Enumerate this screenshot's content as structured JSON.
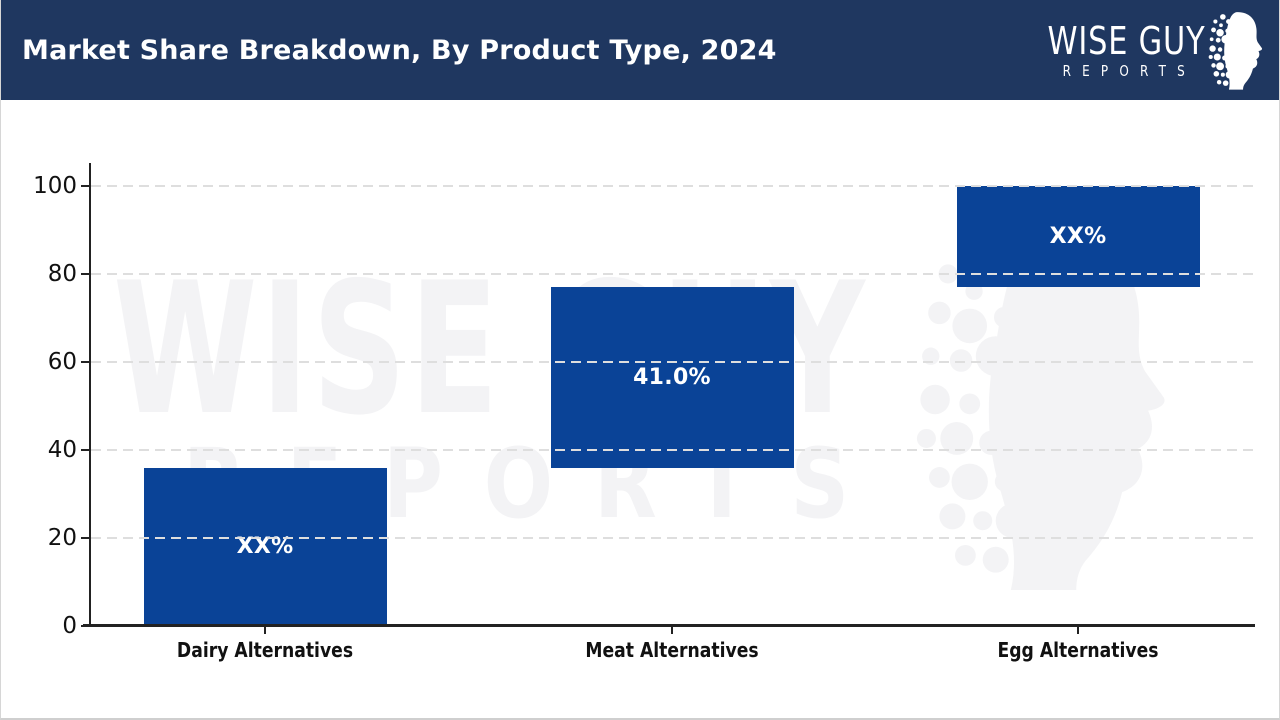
{
  "header": {
    "title": "Market Share Breakdown, By Product Type, 2024",
    "logo": {
      "brand_line1": "WISE GUY",
      "brand_line2": "REPORTS"
    }
  },
  "watermark": {
    "line1": "WISE GUY",
    "line2": "REPORTS"
  },
  "chart_data": {
    "type": "bar",
    "subtype": "floating_segment_waterfall",
    "title": "Market Share Breakdown, By Product Type, 2024",
    "categories": [
      "Dairy Alternatives",
      "Meat Alternatives",
      "Egg Alternatives"
    ],
    "bars": [
      {
        "category": "Dairy Alternatives",
        "start": 0,
        "end": 36,
        "value": 36,
        "label": "XX%"
      },
      {
        "category": "Meat Alternatives",
        "start": 36,
        "end": 77,
        "value": 41,
        "label": "41.0%"
      },
      {
        "category": "Egg Alternatives",
        "start": 77,
        "end": 100,
        "value": 23,
        "label": "XX%"
      }
    ],
    "y_ticks": [
      0,
      20,
      40,
      60,
      80,
      100
    ],
    "ylim": [
      0,
      105
    ],
    "xlabel": "",
    "ylabel": "",
    "grid": {
      "horizontal": true,
      "style": "dashed",
      "drawn_over_bars": true
    },
    "legend": null,
    "colors": {
      "bar": "#0a4397",
      "header_bg": "#1f3760",
      "grid": "#dedede",
      "axis": "#222222",
      "bar_label_text": "#ffffff",
      "tick_text": "#111111",
      "watermark": "#f3f3f5"
    }
  }
}
